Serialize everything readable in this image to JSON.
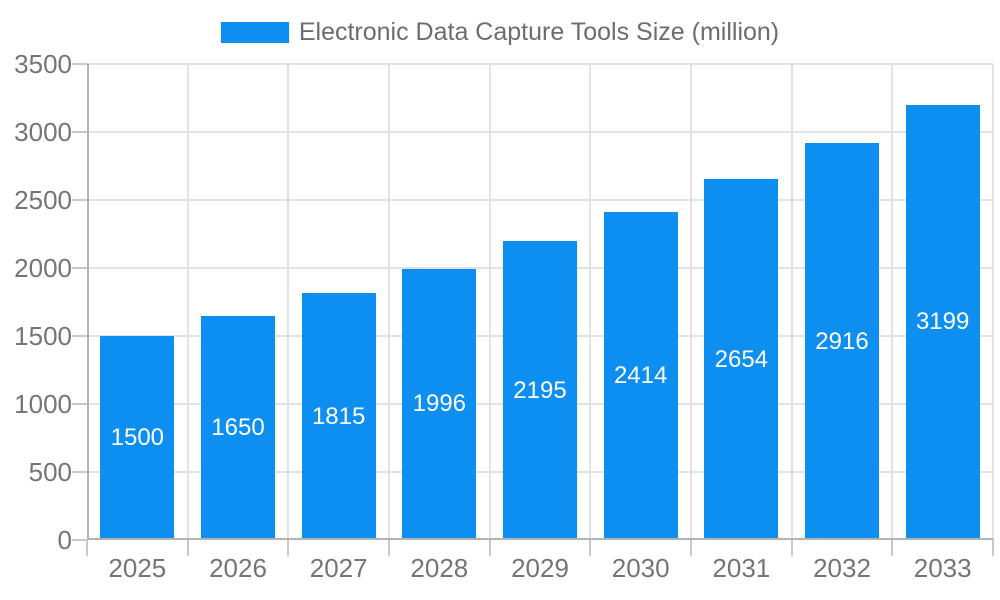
{
  "chart_data": {
    "type": "bar",
    "title": "Electronic Data Capture Tools Size (million)",
    "categories": [
      "2025",
      "2026",
      "2027",
      "2028",
      "2029",
      "2030",
      "2031",
      "2032",
      "2033"
    ],
    "values": [
      1500,
      1650,
      1815,
      1996,
      2195,
      2414,
      2654,
      2916,
      3199
    ],
    "xlabel": "",
    "ylabel": "",
    "ylim": [
      0,
      3500
    ],
    "yticks": [
      0,
      500,
      1000,
      1500,
      2000,
      2500,
      3000,
      3500
    ],
    "grid": true,
    "legend_position": "top-center",
    "bar_color": "#0d8ef1",
    "value_label_color": "#ffffff",
    "axis_text_color": "#757575",
    "gridline_color": "#e2e2e2",
    "axis_line_color": "#b3b3b3"
  }
}
